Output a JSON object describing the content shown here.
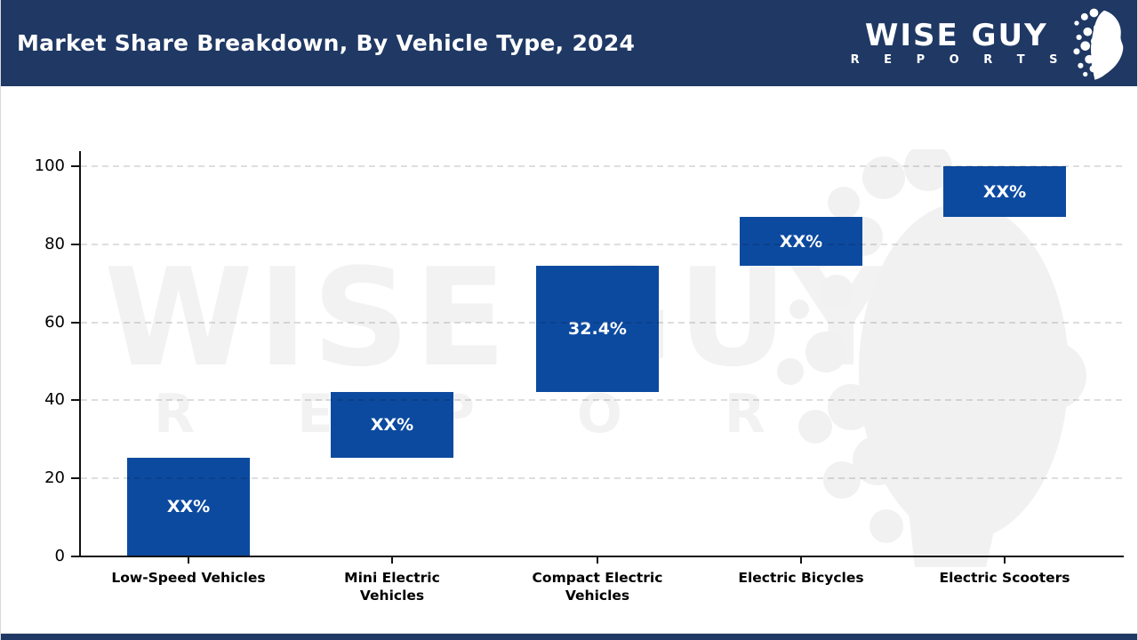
{
  "page": {
    "background": "#ffffff",
    "accent_navy": "#1f3864",
    "border_color": "#d9d9d9"
  },
  "header": {
    "title": "Market Share Breakdown, By Vehicle Type, 2024",
    "logo": {
      "primary": "WISE GUY",
      "secondary": "R E P O R T S"
    }
  },
  "watermark": {
    "primary": "WISE GUY",
    "secondary": "R E P O R T S"
  },
  "chart_data": {
    "type": "bar",
    "subtype": "waterfall",
    "title": "Market Share Breakdown, By Vehicle Type, 2024",
    "categories": [
      "Low-Speed Vehicles",
      "Mini Electric Vehicles",
      "Compact Electric Vehicles",
      "Electric Bicycles",
      "Electric Scooters"
    ],
    "category_label_lines": [
      [
        "Low-Speed Vehicles"
      ],
      [
        "Mini Electric",
        "Vehicles"
      ],
      [
        "Compact Electric",
        "Vehicles"
      ],
      [
        "Electric Bicycles"
      ],
      [
        "Electric Scooters"
      ]
    ],
    "segments": [
      {
        "category": "Low-Speed Vehicles",
        "label": "XX%",
        "start": 0,
        "end": 25.3
      },
      {
        "category": "Mini Electric Vehicles",
        "label": "XX%",
        "start": 25.3,
        "end": 42.1
      },
      {
        "category": "Compact Electric Vehicles",
        "label": "32.4%",
        "start": 42.1,
        "end": 74.5,
        "value": 32.4
      },
      {
        "category": "Electric Bicycles",
        "label": "XX%",
        "start": 74.5,
        "end": 87
      },
      {
        "category": "Electric Scooters",
        "label": "XX%",
        "start": 87,
        "end": 100
      }
    ],
    "bar_color": "#0c4aa0",
    "value_label_color": "#ffffff",
    "yticks": [
      0,
      20,
      40,
      60,
      80,
      100
    ],
    "ylim": [
      0,
      104
    ],
    "xlabel": "",
    "ylabel": "",
    "grid": "horizontal-dashed",
    "legend": false
  }
}
